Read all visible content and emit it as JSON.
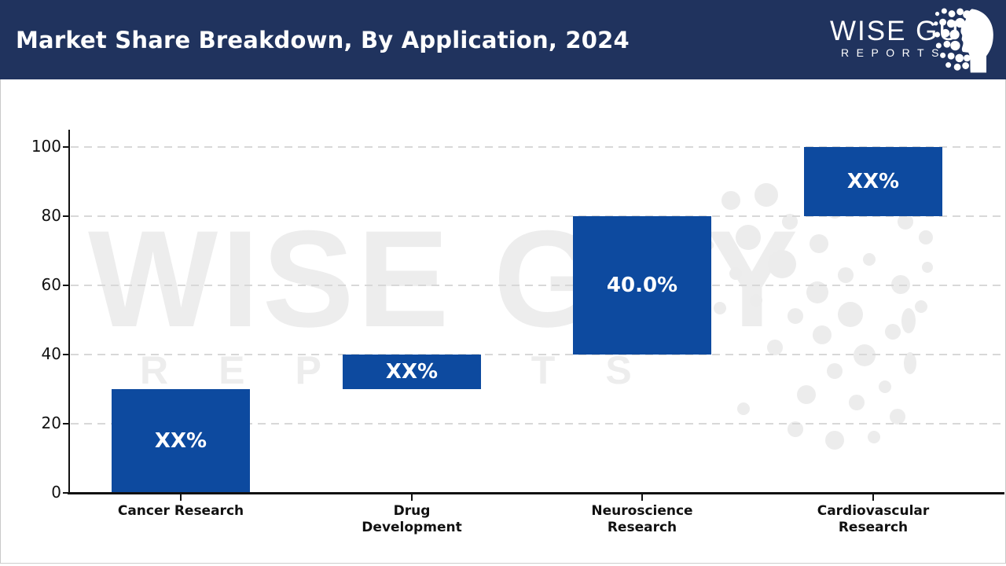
{
  "header": {
    "title": "Market Share Breakdown, By Application, 2024",
    "logo": {
      "wordmark": "WISE GUY",
      "sub": "REPORTS"
    }
  },
  "watermark": {
    "line1": "WISE GUY",
    "line2": "REPORTS"
  },
  "colors": {
    "header_bg": "#20335e",
    "bar_blue": "#0d4a9f",
    "grid_gray": "#d8d8d8",
    "axis_black": "#111111",
    "watermark_gray": "#ededed",
    "frame_border": "#c9c9c9",
    "title_white": "#ffffff"
  },
  "chart_data": {
    "type": "bar",
    "subtype": "floating-segment (waterfall style)",
    "title": "Market Share Breakdown, By Application, 2024",
    "categories": [
      "Cancer Research",
      "Drug Development",
      "Neuroscience Research",
      "Cardiovascular Research"
    ],
    "bars": [
      {
        "category": "Cancer Research",
        "from": 0,
        "to": 30,
        "label": "XX%"
      },
      {
        "category": "Drug Development",
        "from": 30,
        "to": 40,
        "label": "XX%"
      },
      {
        "category": "Neuroscience Research",
        "from": 40,
        "to": 80,
        "label": "40.0%"
      },
      {
        "category": "Cardiovascular Research",
        "from": 80,
        "to": 100,
        "label": "XX%"
      }
    ],
    "yticks": [
      0,
      20,
      40,
      60,
      80,
      100
    ],
    "ylim": [
      0,
      100
    ],
    "xlabel": "",
    "ylabel": "",
    "grid": "horizontal dashed",
    "legend": "none",
    "bar_color": "#0d4a9f"
  }
}
